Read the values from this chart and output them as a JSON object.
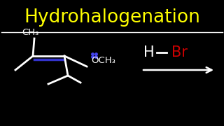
{
  "title": "Hydrohalogenation",
  "title_color": "#FFFF00",
  "background_color": "#000000",
  "separator_color": "#FFFFFF",
  "molecule_color": "#FFFFFF",
  "double_bond_color": "#3333CC",
  "lone_pair_color": "#4444EE",
  "H_color": "#FFFFFF",
  "Br_color": "#CC0000",
  "arrow_color": "#FFFFFF",
  "ch3_label": "CH₃",
  "och3_label": "OCH₃",
  "H_label": "H",
  "Br_label": "Br",
  "title_fontsize": 19,
  "label_fontsize": 9.5,
  "hbr_fontsize": 15
}
